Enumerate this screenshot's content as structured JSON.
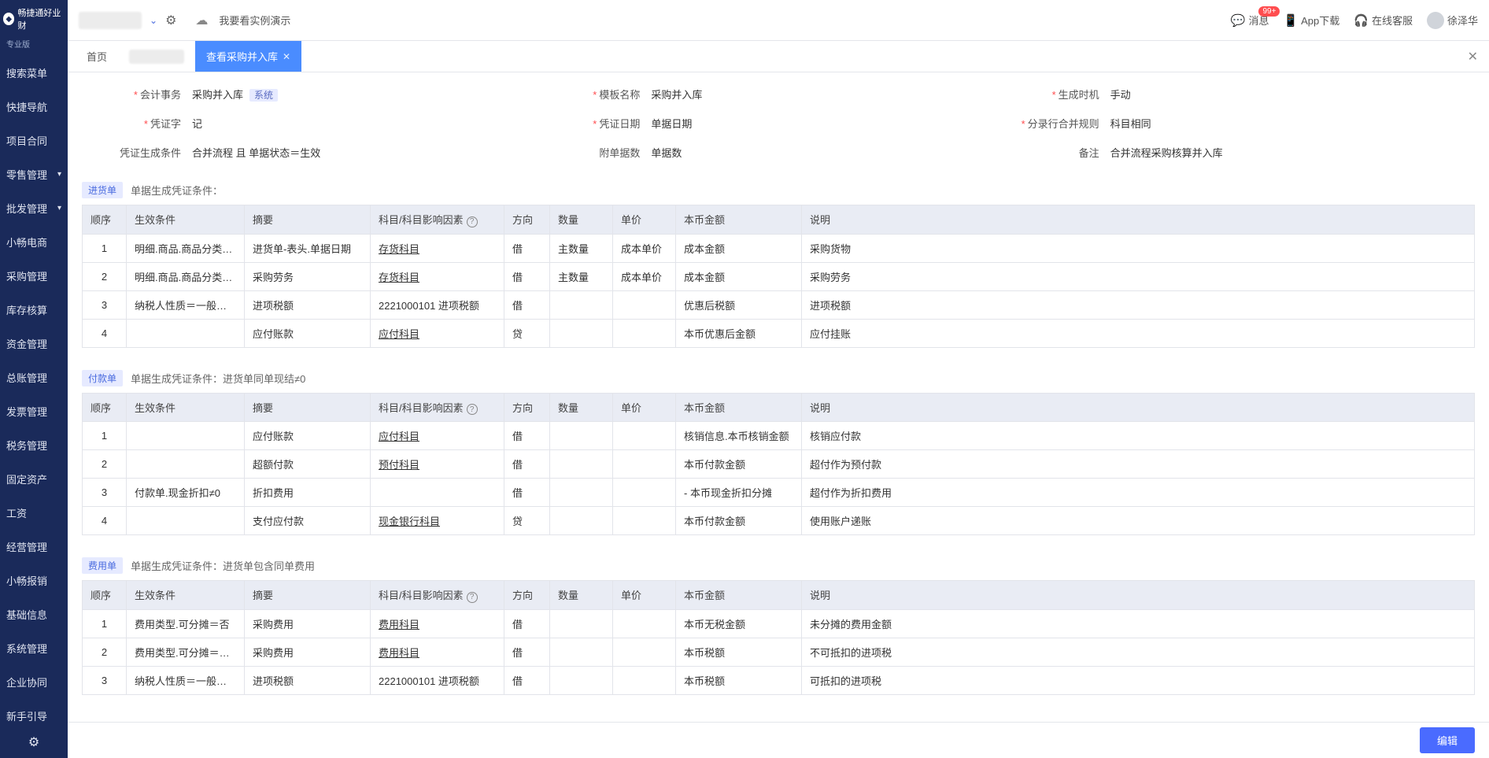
{
  "brand": {
    "name": "畅捷通好业财",
    "sub": "专业版"
  },
  "sidebar": {
    "items": [
      {
        "label": "搜索菜单"
      },
      {
        "label": "快捷导航"
      },
      {
        "label": "项目合同"
      },
      {
        "label": "零售管理",
        "expandable": true
      },
      {
        "label": "批发管理",
        "expandable": true
      },
      {
        "label": "小畅电商"
      },
      {
        "label": "采购管理"
      },
      {
        "label": "库存核算"
      },
      {
        "label": "资金管理"
      },
      {
        "label": "总账管理"
      },
      {
        "label": "发票管理"
      },
      {
        "label": "税务管理"
      },
      {
        "label": "固定资产"
      },
      {
        "label": "工资"
      },
      {
        "label": "经营管理"
      },
      {
        "label": "小畅报销"
      },
      {
        "label": "基础信息"
      },
      {
        "label": "系统管理"
      },
      {
        "label": "企业协同"
      },
      {
        "label": "新手引导"
      }
    ]
  },
  "topbar": {
    "demo": "我要看实例演示",
    "msg": "消息",
    "badge": "99+",
    "download": "App下载",
    "service": "在线客服",
    "username": "徐泽华"
  },
  "tabs": {
    "home": "首页",
    "active": "查看采购并入库"
  },
  "meta": {
    "f1": {
      "label": "会计事务",
      "value": "采购并入库",
      "tag": "系统"
    },
    "f2": {
      "label": "模板名称",
      "value": "采购并入库"
    },
    "f3": {
      "label": "生成时机",
      "value": "手动"
    },
    "f4": {
      "label": "凭证字",
      "value": "记"
    },
    "f5": {
      "label": "凭证日期",
      "value": "单据日期"
    },
    "f6": {
      "label": "分录行合并规则",
      "value": "科目相同"
    },
    "f7": {
      "label": "凭证生成条件",
      "value": "合并流程 且 单据状态＝生效"
    },
    "f8": {
      "label": "附单据数",
      "value": "单据数"
    },
    "f9": {
      "label": "备注",
      "value": "合并流程采购核算并入库"
    }
  },
  "table_headers": {
    "seq": "顺序",
    "cond": "生效条件",
    "summary": "摘要",
    "subject": "科目/科目影响因素",
    "dir": "方向",
    "qty": "数量",
    "price": "单价",
    "amt": "本币金额",
    "desc": "说明"
  },
  "sections": [
    {
      "badge": "进货单",
      "cond_label": "单据生成凭证条件：",
      "cond_value": "",
      "rows": [
        {
          "seq": "1",
          "cond": "明细.商品.商品分类＝货物",
          "summary": "进货单-表头.单据日期",
          "subject": "存货科目",
          "subject_link": true,
          "dir": "借",
          "qty": "主数量",
          "price": "成本单价",
          "amt": "成本金额",
          "desc": "采购货物"
        },
        {
          "seq": "2",
          "cond": "明细.商品.商品分类＝劳务",
          "summary": "采购劳务",
          "subject": "存货科目",
          "subject_link": true,
          "dir": "借",
          "qty": "主数量",
          "price": "成本单价",
          "amt": "成本金额",
          "desc": "采购劳务"
        },
        {
          "seq": "3",
          "cond": "纳税人性质＝一般纳税人 且 发",
          "summary": "进项税额",
          "subject": "2221000101 进项税额",
          "subject_link": false,
          "dir": "借",
          "qty": "",
          "price": "",
          "amt": "优惠后税额",
          "desc": "进项税额"
        },
        {
          "seq": "4",
          "cond": "",
          "summary": "应付账款",
          "subject": "应付科目",
          "subject_link": true,
          "dir": "贷",
          "qty": "",
          "price": "",
          "amt": "本币优惠后金额",
          "desc": "应付挂账"
        }
      ]
    },
    {
      "badge": "付款单",
      "cond_label": "单据生成凭证条件：",
      "cond_value": "进货单同单现结≠0",
      "rows": [
        {
          "seq": "1",
          "cond": "",
          "summary": "应付账款",
          "subject": "应付科目",
          "subject_link": true,
          "dir": "借",
          "qty": "",
          "price": "",
          "amt": "核销信息.本币核销金额",
          "desc": "核销应付款"
        },
        {
          "seq": "2",
          "cond": "",
          "summary": "超额付款",
          "subject": "预付科目",
          "subject_link": true,
          "dir": "借",
          "qty": "",
          "price": "",
          "amt": "本币付款金额",
          "desc": "超付作为预付款"
        },
        {
          "seq": "3",
          "cond": "付款单.现金折扣≠0",
          "summary": "折扣费用",
          "subject": "",
          "subject_link": false,
          "dir": "借",
          "qty": "",
          "price": "",
          "amt": "- 本币现金折扣分摊",
          "desc": "超付作为折扣费用"
        },
        {
          "seq": "4",
          "cond": "",
          "summary": "支付应付款",
          "subject": "现金银行科目",
          "subject_link": true,
          "dir": "贷",
          "qty": "",
          "price": "",
          "amt": "本币付款金额",
          "desc": "使用账户递账"
        }
      ]
    },
    {
      "badge": "费用单",
      "cond_label": "单据生成凭证条件：",
      "cond_value": "进货单包含同单费用",
      "rows": [
        {
          "seq": "1",
          "cond": "费用类型.可分摊＝否",
          "summary": "采购费用",
          "subject": "费用科目",
          "subject_link": true,
          "dir": "借",
          "qty": "",
          "price": "",
          "amt": "本币无税金额",
          "desc": "未分摊的费用金额"
        },
        {
          "seq": "2",
          "cond": "费用类型.可分摊＝否 且 (纳税",
          "summary": "采购费用",
          "subject": "费用科目",
          "subject_link": true,
          "dir": "借",
          "qty": "",
          "price": "",
          "amt": "本币税额",
          "desc": "不可抵扣的进项税"
        },
        {
          "seq": "3",
          "cond": "纳税人性质＝一般纳税人 且 (",
          "summary": "进项税额",
          "subject": "2221000101 进项税额",
          "subject_link": false,
          "dir": "借",
          "qty": "",
          "price": "",
          "amt": "本币税额",
          "desc": "可抵扣的进项税"
        }
      ]
    }
  ],
  "footer": {
    "edit": "编辑"
  }
}
